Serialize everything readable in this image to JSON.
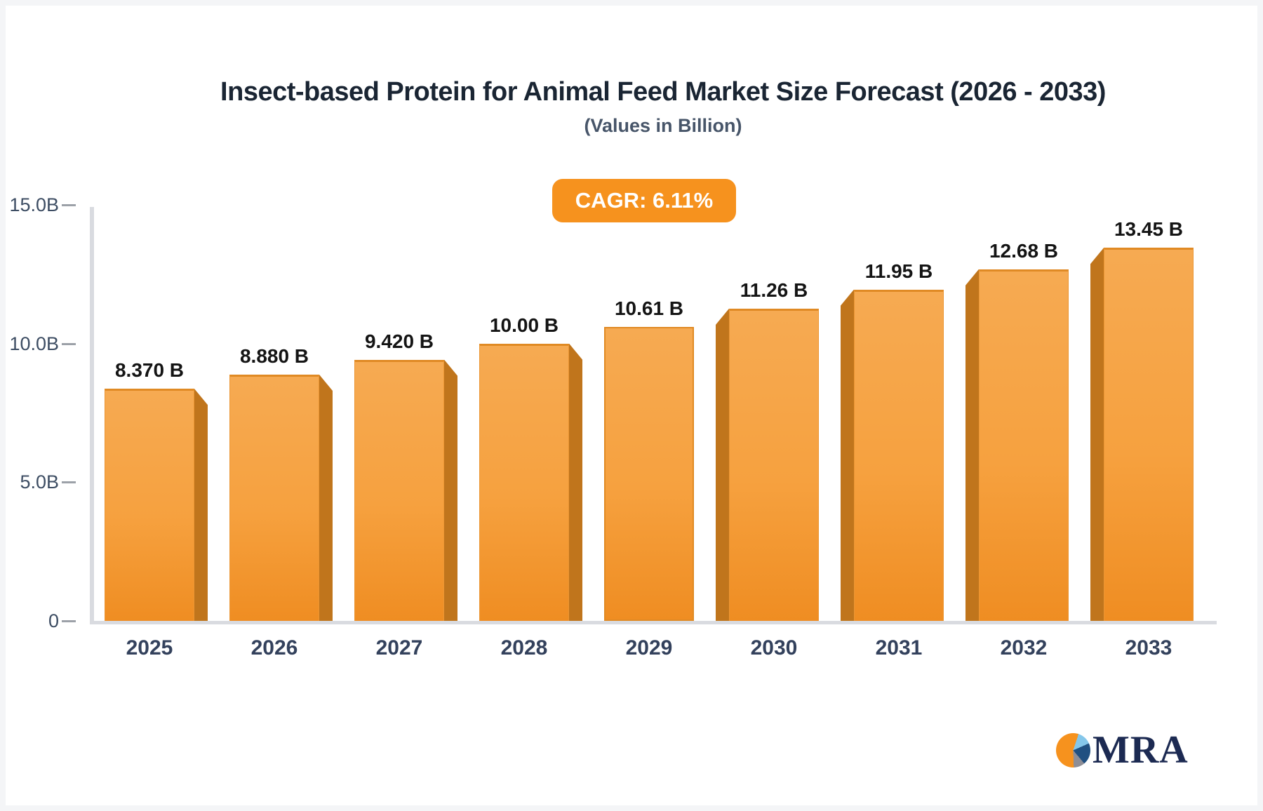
{
  "header": {
    "title": "Insect-based Protein for Animal Feed Market Size Forecast (2026 - 2033)",
    "subtitle": "(Values in Billion)"
  },
  "badge": {
    "label": "CAGR: 6.11%"
  },
  "chart_data": {
    "type": "bar",
    "title": "Insect-based Protein for Animal Feed Market Size Forecast (2026 - 2033)",
    "subtitle": "(Values in Billion)",
    "cagr": "6.11%",
    "categories": [
      "2025",
      "2026",
      "2027",
      "2028",
      "2029",
      "2030",
      "2031",
      "2032",
      "2033"
    ],
    "values": [
      8.37,
      8.88,
      9.42,
      10.0,
      10.61,
      11.26,
      11.95,
      12.68,
      13.45
    ],
    "value_labels": [
      "8.370 B",
      "8.880 B",
      "9.420 B",
      "10.00 B",
      "10.61 B",
      "11.26 B",
      "11.95 B",
      "12.68 B",
      "13.45 B"
    ],
    "xlabel": "",
    "ylabel": "",
    "ylim": [
      0,
      15
    ],
    "yticks": [
      {
        "label": "15.0B",
        "value": 15
      },
      {
        "label": "10.0B",
        "value": 10
      },
      {
        "label": "5.0B",
        "value": 5
      },
      {
        "label": "0",
        "value": 0
      }
    ],
    "grid": false,
    "legend": false,
    "bar_style": "3d-extruded, perspective toward center bar"
  },
  "logo": {
    "text": "MRA",
    "icon": "pie-chart-icon"
  },
  "colors": {
    "accent_orange": "#f6921e",
    "bar_gradient_top": "#f6aa52",
    "bar_gradient_bottom": "#ef8d22",
    "bar_side": "#c0751c",
    "bar_edge": "#e08a24",
    "axis_line": "#d9dbe0",
    "tick_mark": "#9ca1a8",
    "y_label": "#3d4d63",
    "x_label": "#33415c",
    "title": "#1a2533",
    "subtitle": "#475569",
    "value_label": "#141414",
    "logo_navy": "#1c2a52",
    "pie_blue": "#85c7ea",
    "pie_dark_blue": "#205081",
    "pie_gray": "#8e8e96",
    "card_background": "#ffffff",
    "page_background": "#f4f5f7"
  }
}
